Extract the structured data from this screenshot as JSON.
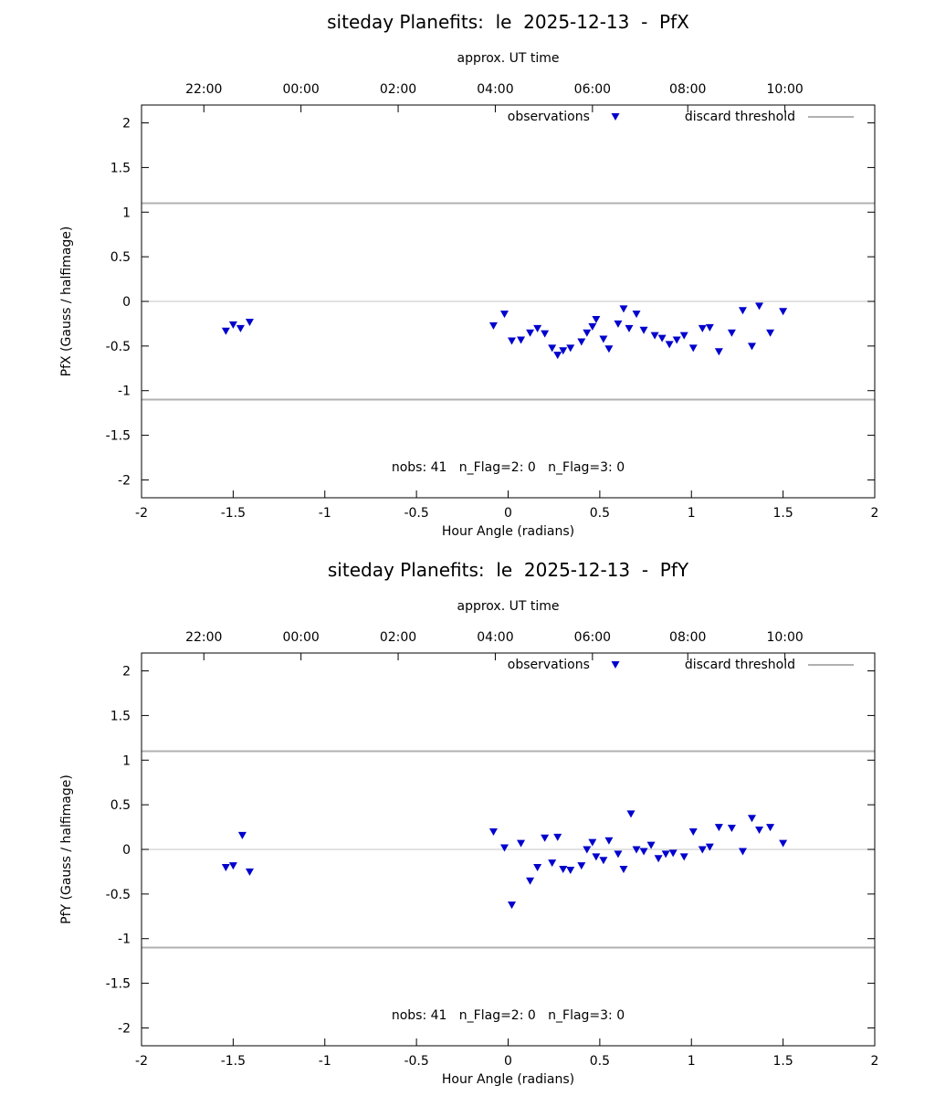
{
  "colors": {
    "background": "#ffffff",
    "marker": "#0000cd",
    "threshold_line": "#b0b0b0",
    "zero_line": "#c6c6c6",
    "axis": "#000000"
  },
  "chart_data": [
    {
      "type": "scatter",
      "title": "siteday Planefits:  le  2025-12-13  -  PfX",
      "x2label": "approx. UT time",
      "xlabel": "Hour Angle (radians)",
      "ylabel": "PfX (Gauss / halfimage)",
      "xlim": [
        -2,
        2
      ],
      "ylim": [
        -2.2,
        2.2
      ],
      "xticks": [
        -2,
        -1.5,
        -1,
        -0.5,
        0,
        0.5,
        1,
        1.5,
        2
      ],
      "yticks": [
        -2,
        -1.5,
        -1,
        -0.5,
        0,
        0.5,
        1,
        1.5,
        2
      ],
      "x2ticks": [
        {
          "label": "22:00",
          "x": -1.66
        },
        {
          "label": "00:00",
          "x": -1.13
        },
        {
          "label": "02:00",
          "x": -0.6
        },
        {
          "label": "04:00",
          "x": -0.07
        },
        {
          "label": "06:00",
          "x": 0.46
        },
        {
          "label": "08:00",
          "x": 0.98
        },
        {
          "label": "10:00",
          "x": 1.51
        }
      ],
      "zero_line": 0,
      "threshold": {
        "name": "discard threshold",
        "values": [
          1.1,
          -1.1
        ]
      },
      "annotation": "nobs: 41   n_Flag=2: 0   n_Flag=3: 0",
      "legend_position": "top-right-inside",
      "series": [
        {
          "name": "observations",
          "marker": "triangle-down",
          "points": [
            [
              -1.54,
              -0.33
            ],
            [
              -1.5,
              -0.26
            ],
            [
              -1.46,
              -0.3
            ],
            [
              -1.41,
              -0.23
            ],
            [
              -0.08,
              -0.27
            ],
            [
              -0.02,
              -0.14
            ],
            [
              0.02,
              -0.44
            ],
            [
              0.07,
              -0.43
            ],
            [
              0.12,
              -0.35
            ],
            [
              0.16,
              -0.3
            ],
            [
              0.2,
              -0.36
            ],
            [
              0.24,
              -0.52
            ],
            [
              0.27,
              -0.6
            ],
            [
              0.3,
              -0.55
            ],
            [
              0.34,
              -0.52
            ],
            [
              0.4,
              -0.45
            ],
            [
              0.43,
              -0.35
            ],
            [
              0.46,
              -0.28
            ],
            [
              0.48,
              -0.2
            ],
            [
              0.52,
              -0.42
            ],
            [
              0.55,
              -0.53
            ],
            [
              0.6,
              -0.25
            ],
            [
              0.63,
              -0.08
            ],
            [
              0.66,
              -0.3
            ],
            [
              0.7,
              -0.14
            ],
            [
              0.74,
              -0.32
            ],
            [
              0.8,
              -0.38
            ],
            [
              0.84,
              -0.41
            ],
            [
              0.88,
              -0.48
            ],
            [
              0.92,
              -0.43
            ],
            [
              0.96,
              -0.38
            ],
            [
              1.01,
              -0.52
            ],
            [
              1.06,
              -0.3
            ],
            [
              1.1,
              -0.29
            ],
            [
              1.15,
              -0.56
            ],
            [
              1.22,
              -0.35
            ],
            [
              1.28,
              -0.1
            ],
            [
              1.33,
              -0.5
            ],
            [
              1.37,
              -0.05
            ],
            [
              1.43,
              -0.35
            ],
            [
              1.5,
              -0.11
            ]
          ]
        }
      ]
    },
    {
      "type": "scatter",
      "title": "siteday Planefits:  le  2025-12-13  -  PfY",
      "x2label": "approx. UT time",
      "xlabel": "Hour Angle (radians)",
      "ylabel": "PfY (Gauss / halfimage)",
      "xlim": [
        -2,
        2
      ],
      "ylim": [
        -2.2,
        2.2
      ],
      "xticks": [
        -2,
        -1.5,
        -1,
        -0.5,
        0,
        0.5,
        1,
        1.5,
        2
      ],
      "yticks": [
        -2,
        -1.5,
        -1,
        -0.5,
        0,
        0.5,
        1,
        1.5,
        2
      ],
      "x2ticks": [
        {
          "label": "22:00",
          "x": -1.66
        },
        {
          "label": "00:00",
          "x": -1.13
        },
        {
          "label": "02:00",
          "x": -0.6
        },
        {
          "label": "04:00",
          "x": -0.07
        },
        {
          "label": "06:00",
          "x": 0.46
        },
        {
          "label": "08:00",
          "x": 0.98
        },
        {
          "label": "10:00",
          "x": 1.51
        }
      ],
      "zero_line": 0,
      "threshold": {
        "name": "discard threshold",
        "values": [
          1.1,
          -1.1
        ]
      },
      "annotation": "nobs: 41   n_Flag=2: 0   n_Flag=3: 0",
      "legend_position": "top-right-inside",
      "series": [
        {
          "name": "observations",
          "marker": "triangle-down",
          "points": [
            [
              -1.54,
              -0.2
            ],
            [
              -1.5,
              -0.18
            ],
            [
              -1.45,
              0.16
            ],
            [
              -1.41,
              -0.25
            ],
            [
              -0.08,
              0.2
            ],
            [
              -0.02,
              0.02
            ],
            [
              0.02,
              -0.62
            ],
            [
              0.07,
              0.07
            ],
            [
              0.12,
              -0.35
            ],
            [
              0.16,
              -0.2
            ],
            [
              0.2,
              0.13
            ],
            [
              0.24,
              -0.15
            ],
            [
              0.27,
              0.14
            ],
            [
              0.3,
              -0.22
            ],
            [
              0.34,
              -0.23
            ],
            [
              0.4,
              -0.18
            ],
            [
              0.43,
              0.0
            ],
            [
              0.46,
              0.08
            ],
            [
              0.48,
              -0.08
            ],
            [
              0.52,
              -0.12
            ],
            [
              0.55,
              0.1
            ],
            [
              0.6,
              -0.05
            ],
            [
              0.63,
              -0.22
            ],
            [
              0.67,
              0.4
            ],
            [
              0.7,
              0.0
            ],
            [
              0.74,
              -0.02
            ],
            [
              0.78,
              0.05
            ],
            [
              0.82,
              -0.1
            ],
            [
              0.86,
              -0.05
            ],
            [
              0.9,
              -0.04
            ],
            [
              0.96,
              -0.08
            ],
            [
              1.01,
              0.2
            ],
            [
              1.06,
              0.0
            ],
            [
              1.1,
              0.03
            ],
            [
              1.15,
              0.25
            ],
            [
              1.22,
              0.24
            ],
            [
              1.28,
              -0.02
            ],
            [
              1.33,
              0.35
            ],
            [
              1.37,
              0.22
            ],
            [
              1.43,
              0.25
            ],
            [
              1.5,
              0.07
            ]
          ]
        }
      ]
    }
  ]
}
